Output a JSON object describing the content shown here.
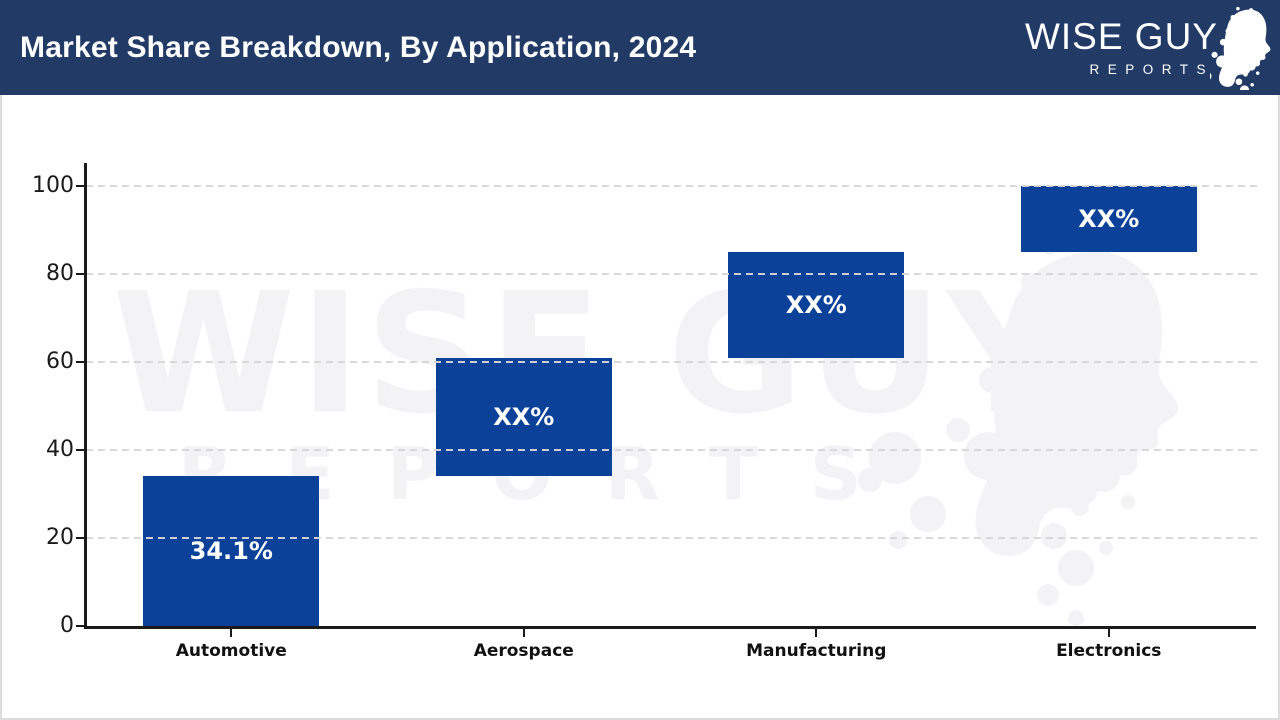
{
  "page": {
    "title": "Market Share Breakdown, By Application, 2024",
    "logo": {
      "brand_line1": "WISE GUY",
      "brand_line2": "REPORTS"
    },
    "watermark": {
      "line1": "WISE GUY",
      "line2": "REPORTS"
    },
    "colors": {
      "header_bg": "#213a66",
      "bar": "#0b4199",
      "bar_label_text": "#ffffff",
      "gridline": "#d6d6d6",
      "axis": "#1a1a1a",
      "watermark": "#f3f3f5",
      "page_border": "#dcdcdc"
    }
  },
  "chart_data": {
    "type": "bar",
    "subtype": "waterfall",
    "title": "Market Share Breakdown, By Application, 2024",
    "categories": [
      "Automotive",
      "Aerospace",
      "Manufacturing",
      "Electronics"
    ],
    "segments": [
      {
        "category": "Automotive",
        "start": 0,
        "end": 34.1,
        "label": "34.1%"
      },
      {
        "category": "Aerospace",
        "start": 34.1,
        "end": 60.8,
        "label": "XX%"
      },
      {
        "category": "Manufacturing",
        "start": 60.8,
        "end": 84.9,
        "label": "XX%"
      },
      {
        "category": "Electronics",
        "start": 84.9,
        "end": 100,
        "label": "XX%"
      }
    ],
    "xlabel": "",
    "ylabel": "",
    "ylim": [
      0,
      100
    ],
    "yticks": [
      0,
      20,
      40,
      60,
      80,
      100
    ],
    "grid": "dashed-horizontal, drawn above bars",
    "legend": "none",
    "bar_color": "#0b4199"
  }
}
